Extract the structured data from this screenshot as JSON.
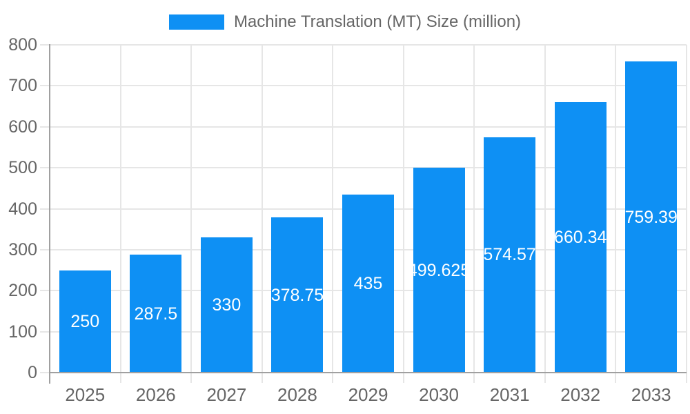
{
  "chart_data": {
    "type": "bar",
    "title": "Machine Translation (MT) Size (million)",
    "legend_position": "top",
    "categories": [
      "2025",
      "2026",
      "2027",
      "2028",
      "2029",
      "2030",
      "2031",
      "2032",
      "2033"
    ],
    "series": [
      {
        "name": "Machine Translation (MT) Size (million)",
        "values": [
          250,
          287.5,
          330,
          378.75,
          435,
          499.625,
          574.57,
          660.34,
          759.39
        ]
      }
    ],
    "value_labels": [
      "250",
      "287.5",
      "330",
      "378.75",
      "435",
      "499.625",
      "574.57",
      "660.34",
      "759.39"
    ],
    "value_labels_position": "center",
    "ylim": [
      0,
      800
    ],
    "ytick_interval": 100,
    "ytick_labels": [
      "0",
      "100",
      "200",
      "300",
      "400",
      "500",
      "600",
      "700",
      "800"
    ],
    "grid": true,
    "colors": {
      "bar": "#0e90f4",
      "grid": "#e6e6e6",
      "axis": "#a0a0a0",
      "tick_text": "#666666",
      "value_text": "#ffffff",
      "background": "#ffffff"
    }
  }
}
